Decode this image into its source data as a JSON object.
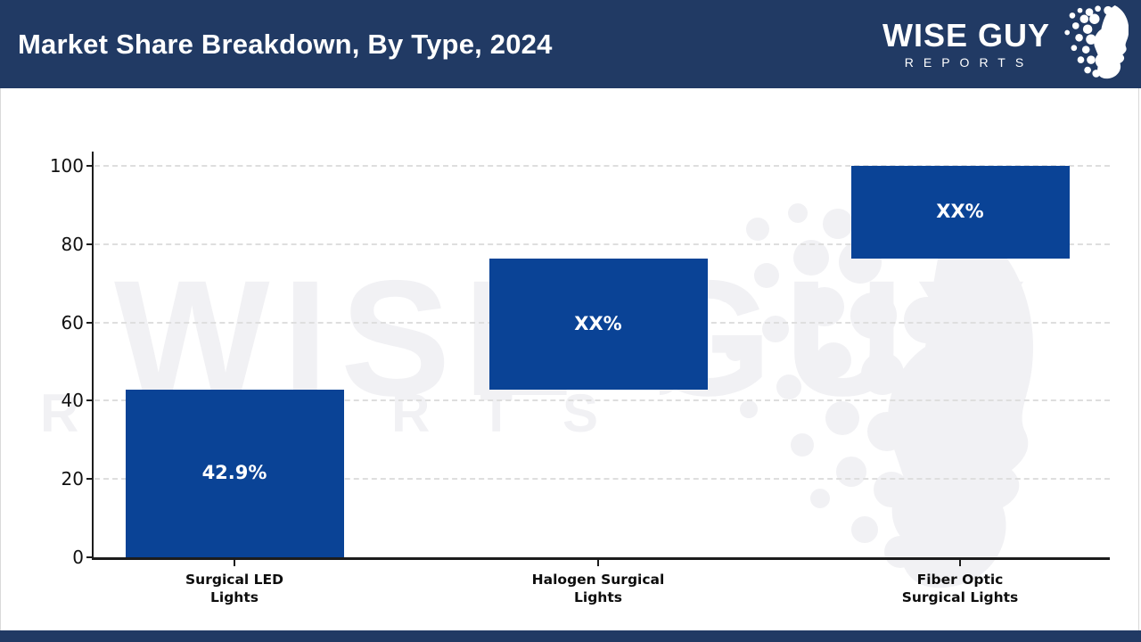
{
  "header": {
    "title": "Market Share Breakdown, By Type, 2024",
    "logo_line1": "WISE GUY",
    "logo_line2": "REPORTS"
  },
  "watermark": {
    "word1": "WISE GUY",
    "word2": "REPORTS"
  },
  "chart_data": {
    "type": "bar",
    "subtype": "waterfall",
    "title": "Market Share Breakdown, By Type, 2024",
    "xlabel": "",
    "ylabel": "",
    "ylim": [
      0,
      100
    ],
    "yticks": [
      0,
      20,
      40,
      60,
      80,
      100
    ],
    "grid": "horizontal-dashed",
    "legend": "none",
    "bar_color": "#0a4396",
    "value_label_color": "#ffffff",
    "categories": [
      [
        "Surgical LED",
        "Lights"
      ],
      [
        "Halogen Surgical",
        "Lights"
      ],
      [
        "Fiber Optic",
        "Surgical Lights"
      ]
    ],
    "segments": [
      {
        "category": "Surgical LED Lights",
        "label": "42.9%",
        "start": 0,
        "end": 42.9
      },
      {
        "category": "Halogen Surgical Lights",
        "label": "XX%",
        "start": 42.9,
        "end": 76.2
      },
      {
        "category": "Fiber Optic Surgical Lights",
        "label": "XX%",
        "start": 76.2,
        "end": 100
      }
    ]
  },
  "colors": {
    "header_bg": "#213a64",
    "footer_bg": "#213a64",
    "bar": "#0a4396",
    "grid": "#dedede",
    "axis": "#1c1c1c",
    "watermark": "#f1f1f4"
  }
}
